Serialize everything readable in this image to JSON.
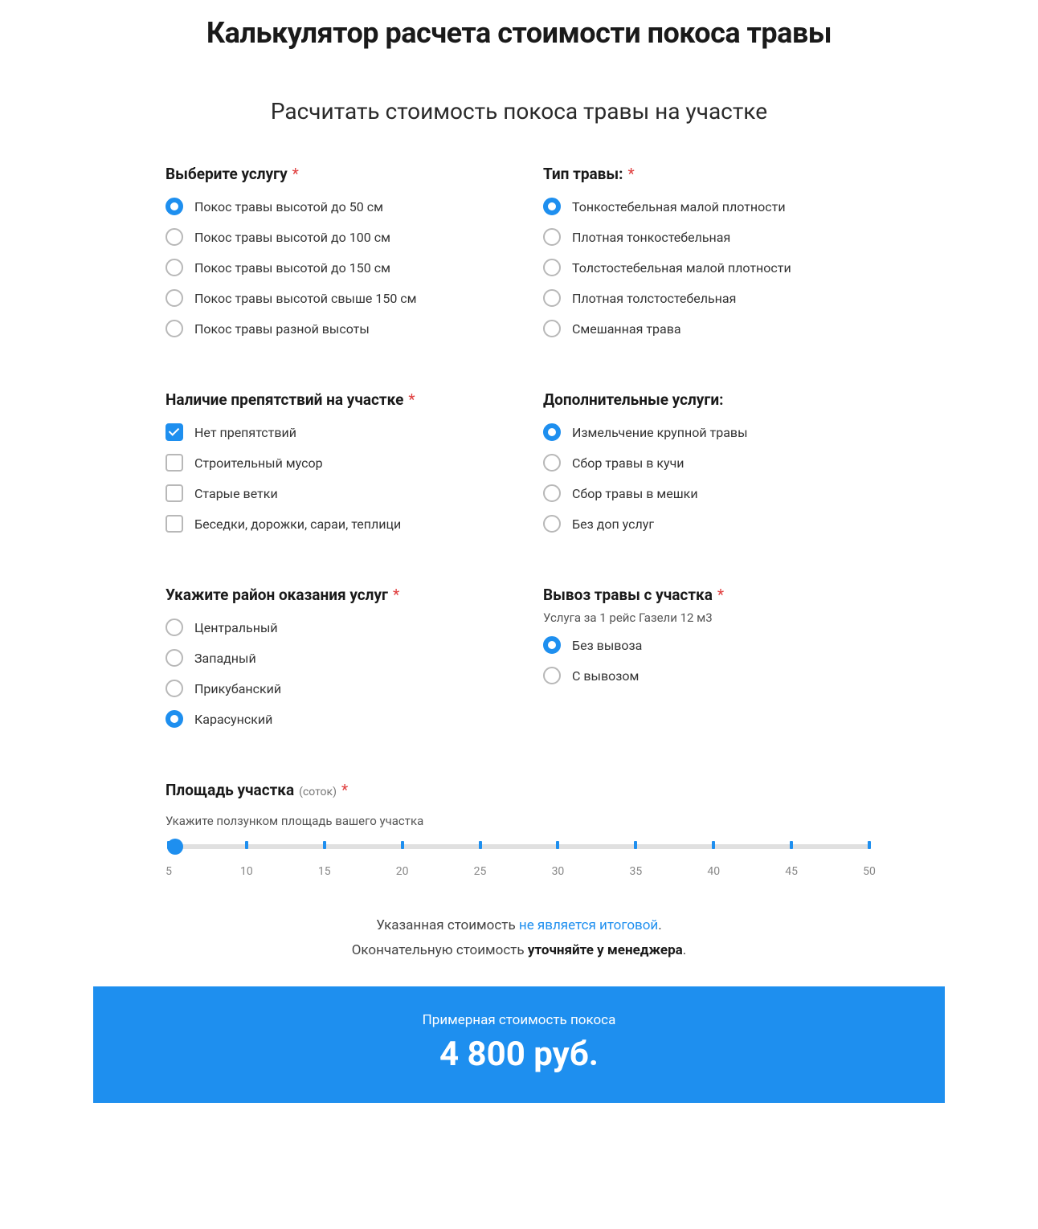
{
  "colors": {
    "accent": "#1e8fef",
    "required": "#e04040",
    "text": "#2a2a2a",
    "muted": "#888",
    "border": "#b8b8b8",
    "track": "#e0e0e0",
    "bg": "#ffffff"
  },
  "page_title": "Калькулятор  расчета стоимости покоса травы",
  "section_title": "Расчитать стоимость покоса травы на участке",
  "groups": {
    "service": {
      "label": "Выберите услугу",
      "required": true,
      "type": "radio",
      "selected": 0,
      "options": [
        "Покос травы высотой до 50 см",
        "Покос травы высотой до 100 см",
        "Покос травы высотой до 150 см",
        "Покос травы высотой свыше 150 см",
        "Покос травы разной высоты"
      ]
    },
    "grass_type": {
      "label": "Тип травы:",
      "required": true,
      "type": "radio",
      "selected": 0,
      "options": [
        "Тонкостебельная малой плотности",
        "Плотная тонкостебельная",
        "Толстостебельная малой плотности",
        "Плотная толстостебельная",
        "Смешанная трава"
      ]
    },
    "obstacles": {
      "label": "Наличие препятствий на участке",
      "required": true,
      "type": "checkbox",
      "selected": [
        0
      ],
      "options": [
        "Нет препятствий",
        "Строительный мусор",
        "Старые ветки",
        "Беседки, дорожки, сараи, теплици"
      ]
    },
    "extras": {
      "label": "Дополнительные услуги:",
      "required": false,
      "type": "radio",
      "selected": 0,
      "options": [
        "Измельчение крупной травы",
        "Сбор травы в кучи",
        "Сбор травы в мешки",
        "Без доп услуг"
      ]
    },
    "district": {
      "label": "Укажите район оказания услуг",
      "required": true,
      "type": "radio",
      "selected": 3,
      "options": [
        "Центральный",
        "Западный",
        "Прикубанский",
        "Карасунский"
      ]
    },
    "removal": {
      "label": "Вывоз травы с участка",
      "sublabel": "Услуга за 1 рейс Газели 12 м3",
      "required": true,
      "type": "radio",
      "selected": 0,
      "options": [
        "Без вывоза",
        "С вывозом"
      ]
    }
  },
  "area_slider": {
    "label": "Площадь участка",
    "unit": "(соток)",
    "required": true,
    "help": "Укажите ползунком площадь вашего участка",
    "min": 5,
    "max": 50,
    "step": 5,
    "value": 5,
    "ticks": [
      5,
      10,
      15,
      20,
      25,
      30,
      35,
      40,
      45,
      50
    ]
  },
  "disclaimer": {
    "line1_a": "Указанная стоимость ",
    "line1_b": "не является итоговой",
    "line1_c": ".",
    "line2_a": "Окончательную стоимость ",
    "line2_b": "уточняйте у менеджера",
    "line2_c": "."
  },
  "result": {
    "caption": "Примерная стоимость покоса",
    "value": "4 800 руб."
  }
}
